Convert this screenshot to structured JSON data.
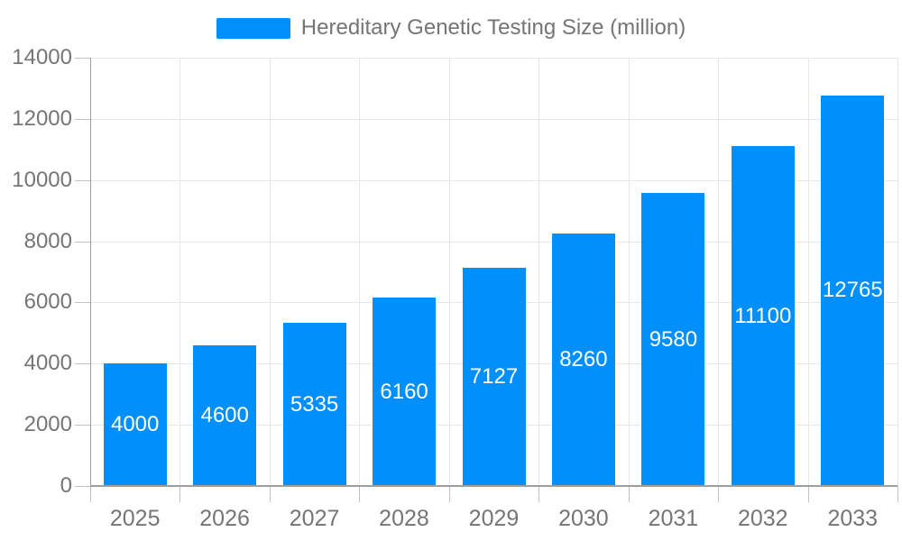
{
  "legend": {
    "label": "Hereditary Genetic Testing Size (million)"
  },
  "chart_data": {
    "type": "bar",
    "title": "Hereditary Genetic Testing Size (million)",
    "categories": [
      "2025",
      "2026",
      "2027",
      "2028",
      "2029",
      "2030",
      "2031",
      "2032",
      "2033"
    ],
    "series": [
      {
        "name": "Hereditary Genetic Testing Size (million)",
        "color": "#008FFB",
        "values": [
          4000,
          4600,
          5335,
          6160,
          7127,
          8260,
          9580,
          11100,
          12765
        ]
      }
    ],
    "data_labels": [
      "4000",
      "4600",
      "5335",
      "6160",
      "7127",
      "8260",
      "9580",
      "11100",
      "12765"
    ],
    "xlabel": "",
    "ylabel": "",
    "ylim": [
      0,
      14000
    ],
    "ytick_step": 2000,
    "yticks": [
      "0",
      "2000",
      "4000",
      "6000",
      "8000",
      "10000",
      "12000",
      "14000"
    ],
    "grid": true,
    "legend_position": "top",
    "bar_labels_position": "inside-center"
  },
  "colors": {
    "bar": "#008FFB",
    "gridline": "#e7e7e7",
    "axis_line": "#9e9e9e",
    "tick": "#c2c2c2",
    "axis_label": "#757575",
    "bar_label": "#ffffff",
    "background": "#ffffff"
  }
}
